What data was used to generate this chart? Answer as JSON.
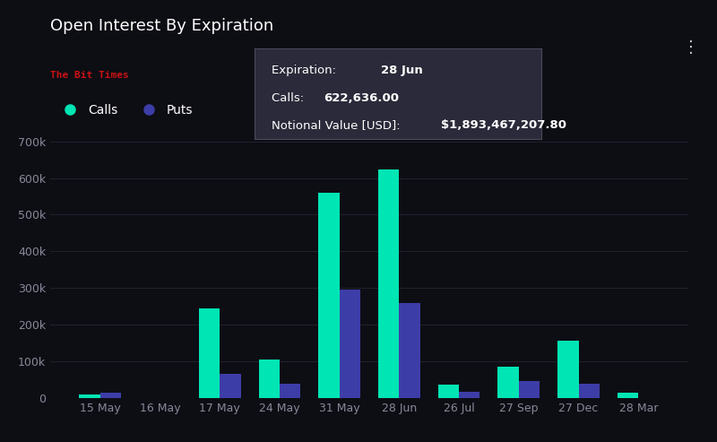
{
  "title": "Open Interest By Expiration",
  "watermark": "The Bit Times",
  "categories": [
    "15 May",
    "16 May",
    "17 May",
    "24 May",
    "31 May",
    "28 Jun",
    "26 Jul",
    "27 Sep",
    "27 Dec",
    "28 Mar"
  ],
  "calls": [
    8000,
    0,
    245000,
    105000,
    560000,
    622636,
    35000,
    85000,
    155000,
    14000
  ],
  "puts": [
    13000,
    0,
    65000,
    38000,
    295000,
    258000,
    17000,
    47000,
    38000,
    0
  ],
  "calls_color": "#00e5b4",
  "puts_color": "#3d3da8",
  "bg_color": "#0d0d14",
  "grid_color": "#222230",
  "text_color": "#ffffff",
  "axis_label_color": "#888899",
  "ylim": [
    0,
    700000
  ],
  "yticks": [
    0,
    100000,
    200000,
    300000,
    400000,
    500000,
    600000,
    700000
  ],
  "ytick_labels": [
    "0",
    "100k",
    "200k",
    "300k",
    "400k",
    "500k",
    "600k",
    "700k"
  ],
  "legend_calls": "Calls",
  "legend_puts": "Puts",
  "tooltip_bg": "#2a2a3a",
  "bar_width": 0.35,
  "title_fontsize": 13,
  "tick_fontsize": 9,
  "legend_fontsize": 10
}
